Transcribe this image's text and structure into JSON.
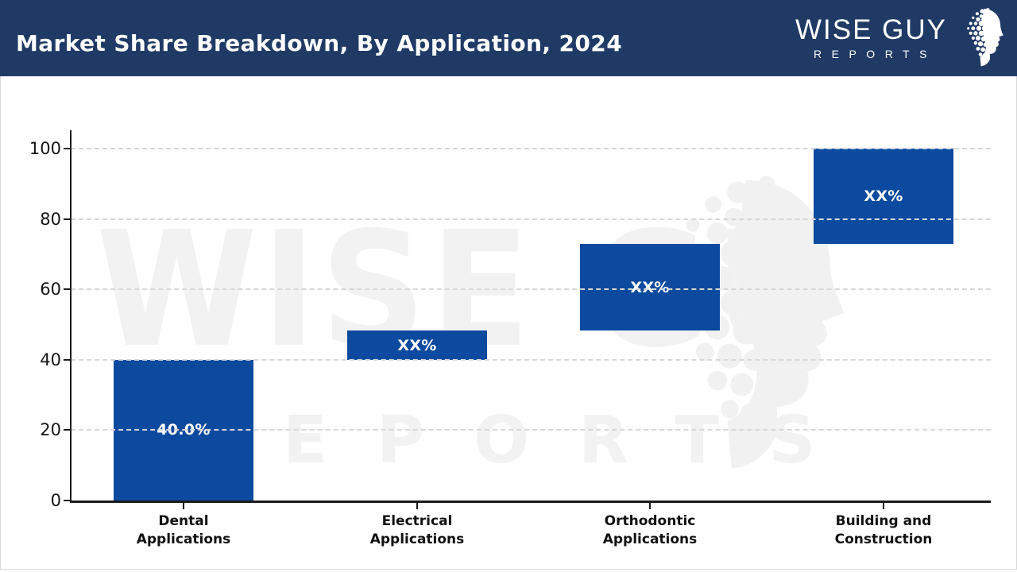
{
  "header": {
    "title": "Market Share Breakdown, By Application, 2024",
    "logo": {
      "line1": "WISE GUY",
      "line2": "REPORTS"
    }
  },
  "watermark": {
    "line1": "WISE GU",
    "line2": "REPORTS"
  },
  "colors": {
    "header_bg": "#203A66",
    "bar": "#0B4A9F",
    "grid": "#d7d7d7",
    "axis": "#1a1a1a",
    "bar_label": "#ffffff",
    "watermark": "#f2f2f2"
  },
  "chart_data": {
    "type": "bar",
    "subtype": "floating-waterfall",
    "title": "Market Share Breakdown, By Application, 2024",
    "xlabel": "",
    "ylabel": "",
    "categories": [
      "Dental Applications",
      "Electrical Applications",
      "Orthodontic Applications",
      "Building and Construction"
    ],
    "segments": [
      {
        "category": "Dental Applications",
        "start": 0,
        "end": 40,
        "value": 40.0,
        "label": "40.0%"
      },
      {
        "category": "Electrical Applications",
        "start": 40,
        "end": 48.2,
        "value": 8.2,
        "label": "XX%"
      },
      {
        "category": "Orthodontic Applications",
        "start": 48.2,
        "end": 72.9,
        "value": 24.7,
        "label": "XX%"
      },
      {
        "category": "Building and Construction",
        "start": 72.9,
        "end": 100,
        "value": 27.1,
        "label": "XX%"
      }
    ],
    "yticks": [
      0,
      20,
      40,
      60,
      80,
      100
    ],
    "ylim": [
      0,
      105
    ],
    "grid": "dashed horizontal",
    "legend": "none"
  }
}
